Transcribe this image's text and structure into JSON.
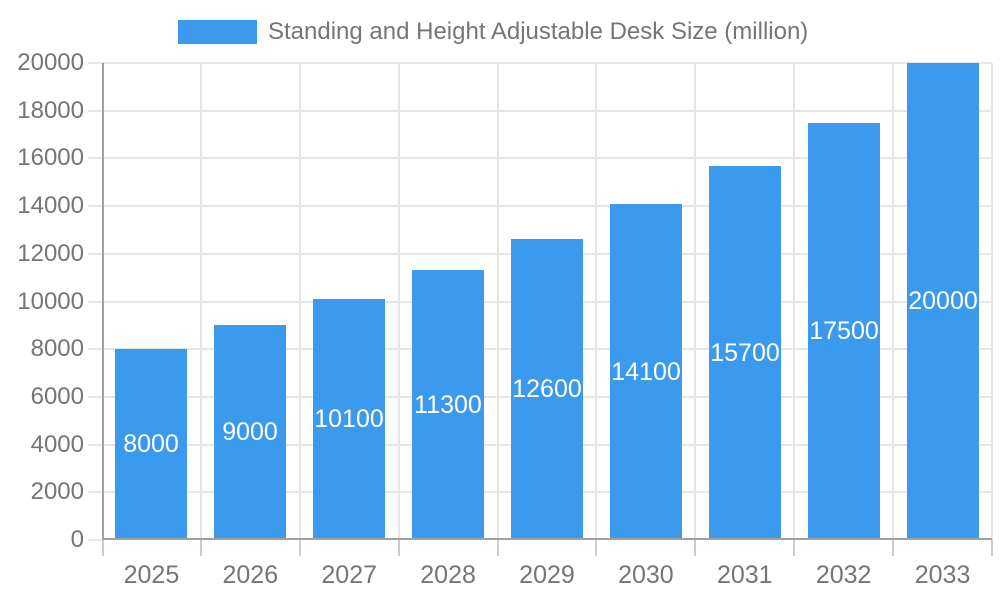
{
  "chart_data": {
    "type": "bar",
    "title": "Standing and Height Adjustable Desk Size (million)",
    "categories": [
      "2025",
      "2026",
      "2027",
      "2028",
      "2029",
      "2030",
      "2031",
      "2032",
      "2033"
    ],
    "values": [
      8000,
      9000,
      10100,
      11300,
      12600,
      14100,
      15700,
      17500,
      20000
    ],
    "series": [
      {
        "name": "Standing and Height Adjustable Desk Size (million)",
        "values": [
          8000,
          9000,
          10100,
          11300,
          12600,
          14100,
          15700,
          17500,
          20000
        ]
      }
    ],
    "xlabel": "",
    "ylabel": "",
    "ylim": [
      0,
      20000
    ],
    "yticks": [
      0,
      2000,
      4000,
      6000,
      8000,
      10000,
      12000,
      14000,
      16000,
      18000,
      20000
    ],
    "grid": true,
    "legend_position": "top",
    "value_labels": "inside bars, white, vertically centered",
    "colors": {
      "bar": "#3b99ee",
      "grid": "#e6e6e6",
      "axis": "#a0a0a0",
      "tick": "#cccccc",
      "text": "#757575",
      "bar_label": "#ffffff",
      "background": "#ffffff"
    }
  }
}
